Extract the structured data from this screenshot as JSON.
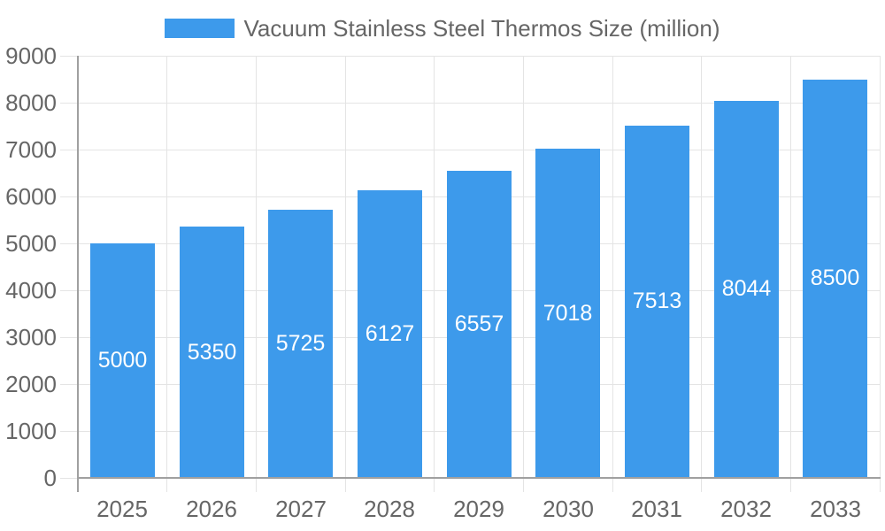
{
  "chart_data": {
    "type": "bar",
    "title": "Vacuum Stainless Steel Thermos Size (million)",
    "legend": {
      "position": "top",
      "label": "Vacuum Stainless Steel Thermos Size (million)"
    },
    "categories": [
      "2025",
      "2026",
      "2027",
      "2028",
      "2029",
      "2030",
      "2031",
      "2032",
      "2033"
    ],
    "values": [
      5000,
      5350,
      5725,
      6127,
      6557,
      7018,
      7513,
      8044,
      8500
    ],
    "xlabel": "",
    "ylabel": "",
    "ylim": [
      0,
      9000
    ],
    "yticks": [
      0,
      1000,
      2000,
      3000,
      4000,
      5000,
      6000,
      7000,
      8000,
      9000
    ],
    "grid": true,
    "value_labels_inside_bars": true,
    "colors": {
      "bar": "#3D9AEB",
      "grid": "#E4E4E4",
      "axis": "#A0A0A0",
      "tick_label": "#666666",
      "legend_label": "#666666",
      "value_label": "#FFFFFF",
      "background": "#FFFFFF"
    }
  }
}
